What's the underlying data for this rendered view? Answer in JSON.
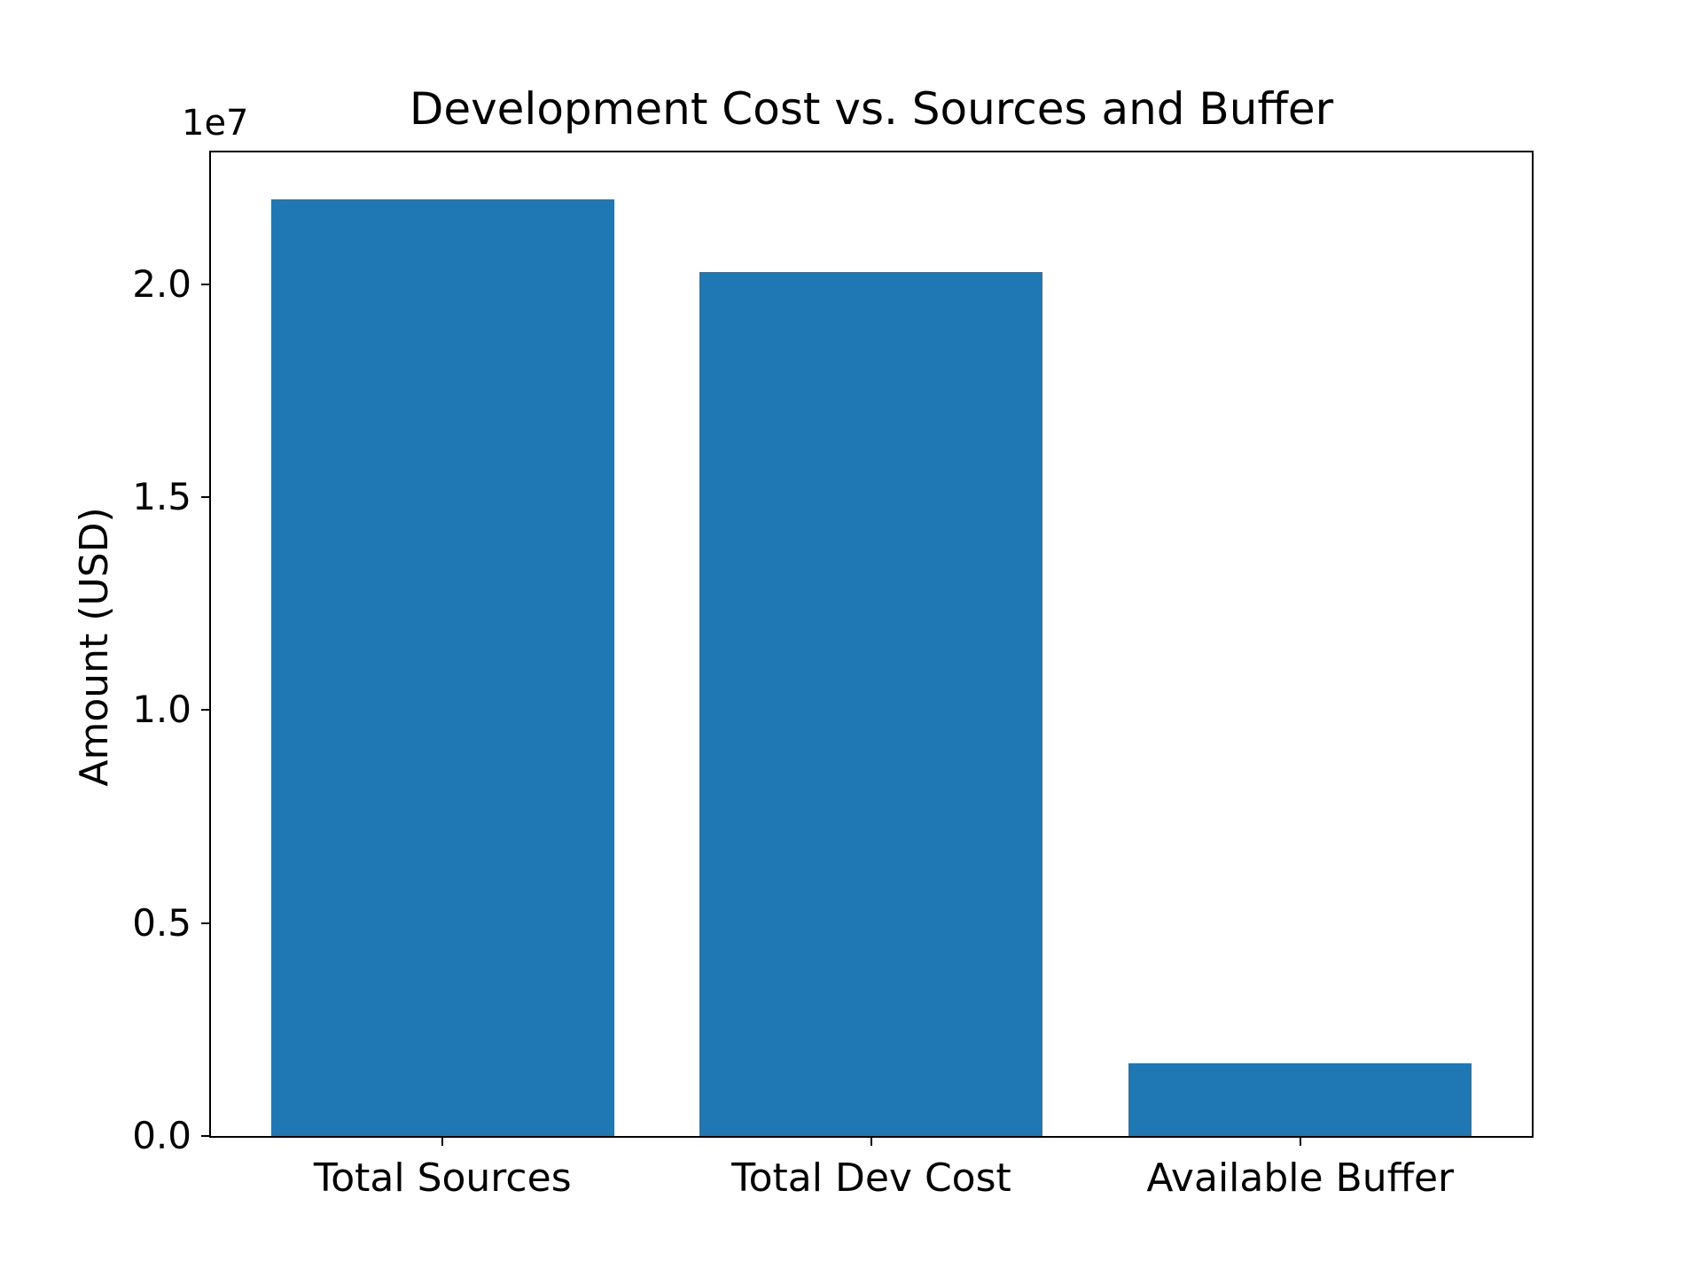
{
  "figure": {
    "background": "#ffffff",
    "axis_color": "#000000"
  },
  "chart_data": {
    "type": "bar",
    "title": "Development Cost vs. Sources and Buffer",
    "xlabel": "",
    "ylabel": "Amount (USD)",
    "offset_text": "1e7",
    "categories": [
      "Total Sources",
      "Total Dev Cost",
      "Available Buffer"
    ],
    "values": [
      22000000,
      20300000,
      1700000
    ],
    "bar_color": "#1f77b4",
    "bar_width_frac": 0.8,
    "ylim": [
      0,
      23100000
    ],
    "yticks": {
      "values": [
        0,
        5000000,
        10000000,
        15000000,
        20000000
      ],
      "labels": [
        "0.0",
        "0.5",
        "1.0",
        "1.5",
        "2.0"
      ]
    },
    "grid": false,
    "legend": null
  }
}
